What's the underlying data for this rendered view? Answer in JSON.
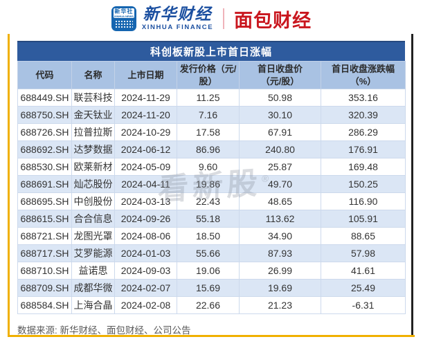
{
  "brand": {
    "xinhua_icon_cn": "新华社",
    "xinhua_icon_en": "XINHUA NEWS",
    "xinhua_name": "新华财经",
    "xinhua_name_en": "XINHUA FINANCE",
    "mianbao_name": "面包财经"
  },
  "chart_data": {
    "type": "table",
    "title": "科创板新股上市首日涨幅",
    "columns": [
      "代码",
      "名称",
      "上市日期",
      "发行价格（元/\n股）",
      "首日收盘价\n（元/股）",
      "首日收盘涨跌幅\n（%）"
    ],
    "column_keys": [
      "code",
      "name",
      "list_date",
      "issue_price",
      "first_day_close",
      "first_day_change_pct"
    ],
    "rows": [
      [
        "688449.SH",
        "联芸科技",
        "2024-11-29",
        "11.25",
        "50.98",
        "353.16"
      ],
      [
        "688750.SH",
        "金天钛业",
        "2024-11-20",
        "7.16",
        "30.10",
        "320.39"
      ],
      [
        "688726.SH",
        "拉普拉斯",
        "2024-10-29",
        "17.58",
        "67.91",
        "286.29"
      ],
      [
        "688692.SH",
        "达梦数据",
        "2024-06-12",
        "86.96",
        "240.80",
        "176.91"
      ],
      [
        "688530.SH",
        "欧莱新材",
        "2024-05-09",
        "9.60",
        "25.87",
        "169.48"
      ],
      [
        "688691.SH",
        "灿芯股份",
        "2024-04-11",
        "19.86",
        "49.70",
        "150.25"
      ],
      [
        "688695.SH",
        "中创股份",
        "2024-03-13",
        "22.43",
        "48.65",
        "116.90"
      ],
      [
        "688615.SH",
        "合合信息",
        "2024-09-26",
        "55.18",
        "113.62",
        "105.91"
      ],
      [
        "688721.SH",
        "龙图光罩",
        "2024-08-06",
        "18.50",
        "34.90",
        "88.65"
      ],
      [
        "688717.SH",
        "艾罗能源",
        "2024-01-03",
        "55.66",
        "87.93",
        "57.98"
      ],
      [
        "688710.SH",
        "益诺思",
        "2024-09-03",
        "19.06",
        "26.99",
        "41.61"
      ],
      [
        "688709.SH",
        "成都华微",
        "2024-02-07",
        "15.69",
        "19.69",
        "25.49"
      ],
      [
        "688584.SH",
        "上海合晶",
        "2024-02-08",
        "22.66",
        "21.23",
        "-6.31"
      ]
    ]
  },
  "watermark": {
    "text": "看新股",
    "mark": "®"
  },
  "footer": {
    "source": "数据来源: 新华财经、面包财经、公司公告"
  },
  "colors": {
    "title_bar": "#2e5b9e",
    "header_row": "#a9c2e3",
    "row_alt": "#dbe6f5",
    "frame_yellow": "#f0b000",
    "frame_dark": "#212121",
    "xinhua_blue": "#1b4fa0",
    "mianbao_red": "#c9161e"
  }
}
